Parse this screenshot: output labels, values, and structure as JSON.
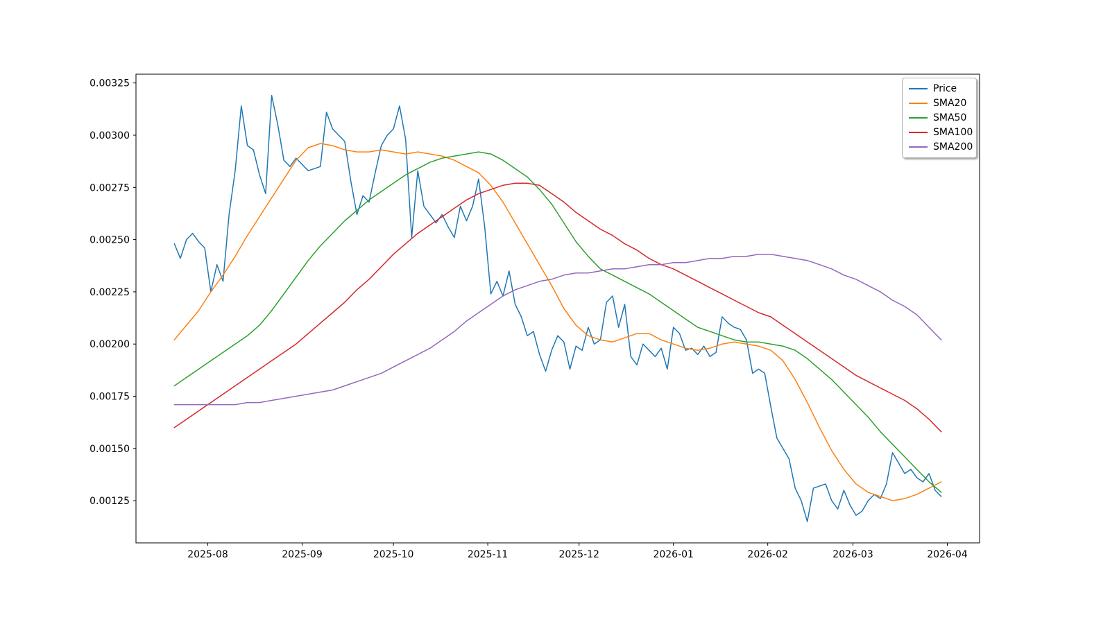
{
  "chart_data": {
    "type": "line",
    "grid": false,
    "legend_position": "upper right",
    "x_unit": "days since 2025-07-21",
    "xlim": [
      -12.6,
      264.6
    ],
    "ylim": [
      0.001048,
      0.003292
    ],
    "x_ticks": [
      {
        "pos": 11,
        "label": "2025-08"
      },
      {
        "pos": 42,
        "label": "2025-09"
      },
      {
        "pos": 72,
        "label": "2025-10"
      },
      {
        "pos": 103,
        "label": "2025-11"
      },
      {
        "pos": 133,
        "label": "2025-12"
      },
      {
        "pos": 164,
        "label": "2026-01"
      },
      {
        "pos": 195,
        "label": "2026-02"
      },
      {
        "pos": 223,
        "label": "2026-03"
      },
      {
        "pos": 254,
        "label": "2026-04"
      }
    ],
    "y_ticks": [
      {
        "value": 0.00125,
        "label": "0.00125"
      },
      {
        "value": 0.0015,
        "label": "0.00150"
      },
      {
        "value": 0.00175,
        "label": "0.00175"
      },
      {
        "value": 0.002,
        "label": "0.00200"
      },
      {
        "value": 0.00225,
        "label": "0.00225"
      },
      {
        "value": 0.0025,
        "label": "0.00250"
      },
      {
        "value": 0.00275,
        "label": "0.00275"
      },
      {
        "value": 0.003,
        "label": "0.00300"
      },
      {
        "value": 0.00325,
        "label": "0.00325"
      }
    ],
    "series": [
      {
        "name": "Price",
        "color": "#1f77b4",
        "x_start": 0,
        "x_step": 2,
        "values": [
          0.00248,
          0.00241,
          0.0025,
          0.00253,
          0.00249,
          0.00246,
          0.00225,
          0.00238,
          0.0023,
          0.00262,
          0.00283,
          0.00314,
          0.00295,
          0.00293,
          0.00281,
          0.00272,
          0.00319,
          0.00305,
          0.00288,
          0.00285,
          0.00289,
          0.00286,
          0.00283,
          0.00284,
          0.00285,
          0.00311,
          0.00303,
          0.003,
          0.00297,
          0.00278,
          0.00262,
          0.00271,
          0.00268,
          0.00282,
          0.00295,
          0.003,
          0.00303,
          0.00314,
          0.00298,
          0.00251,
          0.00283,
          0.00266,
          0.00262,
          0.00258,
          0.00262,
          0.00256,
          0.00251,
          0.00266,
          0.00259,
          0.00266,
          0.00279,
          0.00256,
          0.00224,
          0.0023,
          0.00223,
          0.00235,
          0.00219,
          0.00213,
          0.00204,
          0.00206,
          0.00195,
          0.00187,
          0.00197,
          0.00204,
          0.00201,
          0.00188,
          0.00199,
          0.00197,
          0.00208,
          0.002,
          0.00202,
          0.0022,
          0.00223,
          0.00208,
          0.00219,
          0.00194,
          0.0019,
          0.002,
          0.00197,
          0.00194,
          0.00198,
          0.00188,
          0.00208,
          0.00205,
          0.00197,
          0.00198,
          0.00195,
          0.00199,
          0.00194,
          0.00196,
          0.00213,
          0.0021,
          0.00208,
          0.00207,
          0.00202,
          0.00186,
          0.00188,
          0.00186,
          0.0017,
          0.00155,
          0.0015,
          0.00145,
          0.00131,
          0.00125,
          0.00115,
          0.00131,
          0.00132,
          0.00133,
          0.00125,
          0.00121,
          0.0013,
          0.00123,
          0.00118,
          0.0012,
          0.00125,
          0.00128,
          0.00126,
          0.00133,
          0.00148,
          0.00143,
          0.00138,
          0.0014,
          0.00136,
          0.00134,
          0.00138,
          0.0013,
          0.00127
        ]
      },
      {
        "name": "SMA20",
        "color": "#ff7f0e",
        "x_start": 0,
        "x_step": 4,
        "values": [
          0.00202,
          0.00209,
          0.00216,
          0.00225,
          0.00233,
          0.00242,
          0.00252,
          0.00261,
          0.0027,
          0.00279,
          0.00288,
          0.00294,
          0.00296,
          0.00295,
          0.00293,
          0.00292,
          0.00292,
          0.00293,
          0.00292,
          0.00291,
          0.00292,
          0.00291,
          0.0029,
          0.00288,
          0.00285,
          0.00282,
          0.00276,
          0.00268,
          0.00258,
          0.00248,
          0.00238,
          0.00228,
          0.00217,
          0.00209,
          0.00204,
          0.00202,
          0.00201,
          0.00203,
          0.00205,
          0.00205,
          0.00202,
          0.002,
          0.00198,
          0.00197,
          0.00198,
          0.002,
          0.00201,
          0.002,
          0.00199,
          0.00197,
          0.00192,
          0.00183,
          0.00172,
          0.0016,
          0.00149,
          0.0014,
          0.00133,
          0.00129,
          0.00127,
          0.00125,
          0.00126,
          0.00128,
          0.00131,
          0.00134
        ]
      },
      {
        "name": "SMA50",
        "color": "#2ca02c",
        "x_start": 0,
        "x_step": 4,
        "values": [
          0.0018,
          0.00184,
          0.00188,
          0.00192,
          0.00196,
          0.002,
          0.00204,
          0.00209,
          0.00216,
          0.00224,
          0.00232,
          0.0024,
          0.00247,
          0.00253,
          0.00259,
          0.00264,
          0.00269,
          0.00273,
          0.00277,
          0.00281,
          0.00284,
          0.00287,
          0.00289,
          0.0029,
          0.00291,
          0.00292,
          0.00291,
          0.00288,
          0.00284,
          0.0028,
          0.00274,
          0.00267,
          0.00258,
          0.00249,
          0.00242,
          0.00236,
          0.00233,
          0.0023,
          0.00227,
          0.00224,
          0.0022,
          0.00216,
          0.00212,
          0.00208,
          0.00206,
          0.00204,
          0.00202,
          0.00201,
          0.00201,
          0.002,
          0.00199,
          0.00197,
          0.00193,
          0.00188,
          0.00183,
          0.00177,
          0.00171,
          0.00165,
          0.00158,
          0.00152,
          0.00146,
          0.0014,
          0.00134,
          0.00129
        ]
      },
      {
        "name": "SMA100",
        "color": "#d62728",
        "x_start": 0,
        "x_step": 4,
        "values": [
          0.0016,
          0.00164,
          0.00168,
          0.00172,
          0.00176,
          0.0018,
          0.00184,
          0.00188,
          0.00192,
          0.00196,
          0.002,
          0.00205,
          0.0021,
          0.00215,
          0.0022,
          0.00226,
          0.00231,
          0.00237,
          0.00243,
          0.00248,
          0.00253,
          0.00257,
          0.00261,
          0.00265,
          0.00269,
          0.00272,
          0.00274,
          0.00276,
          0.00277,
          0.00277,
          0.00276,
          0.00272,
          0.00268,
          0.00263,
          0.00259,
          0.00255,
          0.00252,
          0.00248,
          0.00245,
          0.00241,
          0.00238,
          0.00236,
          0.00233,
          0.0023,
          0.00227,
          0.00224,
          0.00221,
          0.00218,
          0.00215,
          0.00213,
          0.00209,
          0.00205,
          0.00201,
          0.00197,
          0.00193,
          0.00189,
          0.00185,
          0.00182,
          0.00179,
          0.00176,
          0.00173,
          0.00169,
          0.00164,
          0.00158
        ]
      },
      {
        "name": "SMA200",
        "color": "#9467bd",
        "x_start": 0,
        "x_step": 4,
        "values": [
          0.00171,
          0.00171,
          0.00171,
          0.00171,
          0.00171,
          0.00171,
          0.00172,
          0.00172,
          0.00173,
          0.00174,
          0.00175,
          0.00176,
          0.00177,
          0.00178,
          0.0018,
          0.00182,
          0.00184,
          0.00186,
          0.00189,
          0.00192,
          0.00195,
          0.00198,
          0.00202,
          0.00206,
          0.00211,
          0.00215,
          0.00219,
          0.00223,
          0.00226,
          0.00228,
          0.0023,
          0.00231,
          0.00233,
          0.00234,
          0.00234,
          0.00235,
          0.00236,
          0.00236,
          0.00237,
          0.00238,
          0.00238,
          0.00239,
          0.00239,
          0.0024,
          0.00241,
          0.00241,
          0.00242,
          0.00242,
          0.00243,
          0.00243,
          0.00242,
          0.00241,
          0.0024,
          0.00238,
          0.00236,
          0.00233,
          0.00231,
          0.00228,
          0.00225,
          0.00221,
          0.00218,
          0.00214,
          0.00208,
          0.00202
        ]
      }
    ]
  }
}
